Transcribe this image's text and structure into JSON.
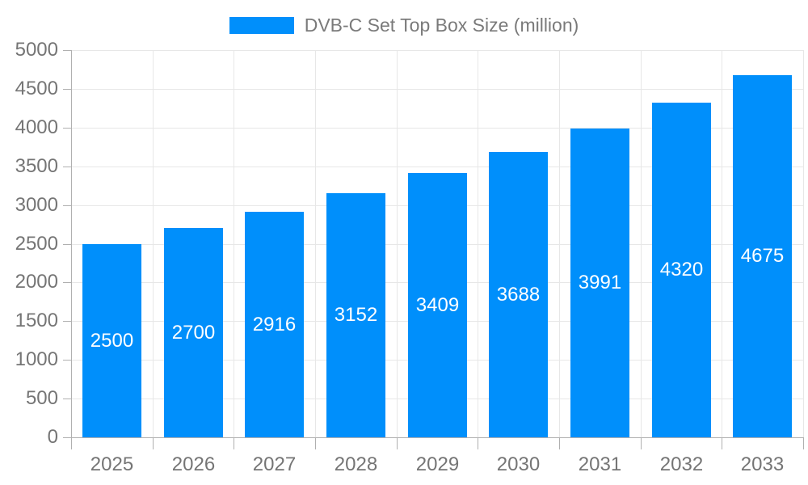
{
  "chart_data": {
    "type": "bar",
    "title": "DVB-C Set Top Box Size (million)",
    "series_name": "DVB-C Set Top Box Size (million)",
    "categories": [
      "2025",
      "2026",
      "2027",
      "2028",
      "2029",
      "2030",
      "2031",
      "2032",
      "2033"
    ],
    "values": [
      2500,
      2700,
      2916,
      3152,
      3409,
      3688,
      3991,
      4320,
      4675
    ],
    "xlabel": "",
    "ylabel": "",
    "ylim": [
      0,
      5000
    ],
    "ytick_step": 500,
    "yticks": [
      0,
      500,
      1000,
      1500,
      2000,
      2500,
      3000,
      3500,
      4000,
      4500,
      5000
    ],
    "grid": true,
    "legend_position": "top",
    "value_labels": "inside-center",
    "colors": {
      "bar": "#008FFB",
      "value_label": "#ffffff",
      "axis_text": "#757575",
      "legend_text": "#7a7a7a",
      "gridline": "#e7e7e7",
      "axis_line": "#b0b0b0",
      "background": "#ffffff"
    }
  }
}
